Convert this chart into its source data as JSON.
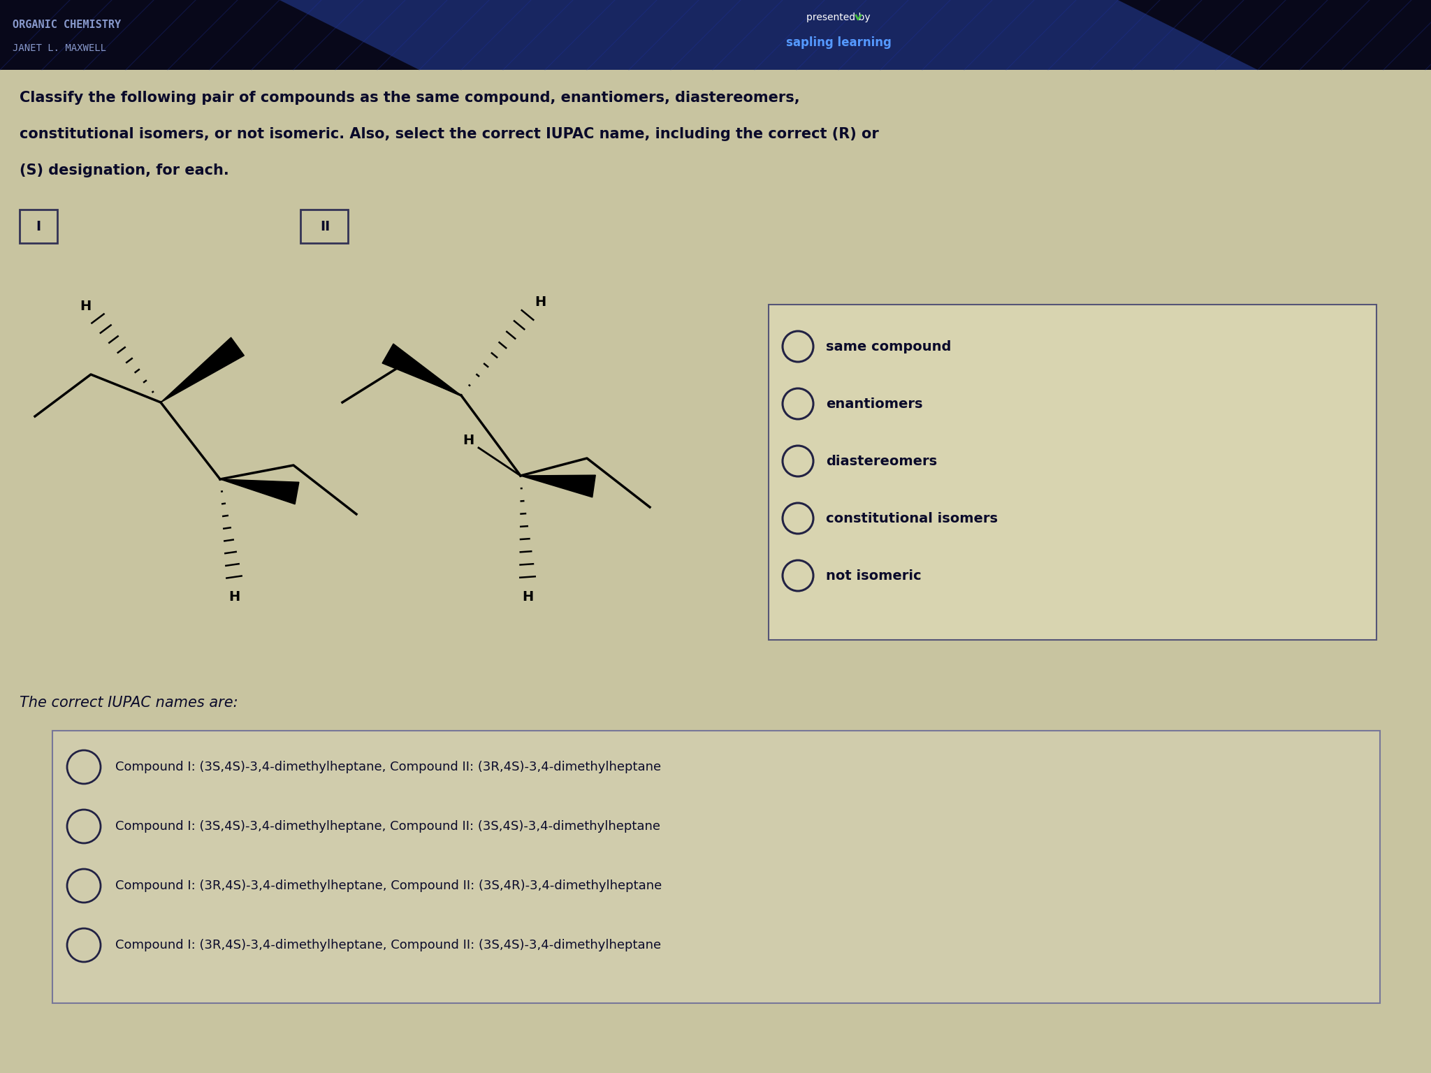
{
  "bg_color": "#c8c4a0",
  "header_bg_top": "#0a0a1a",
  "header_bg_mid": "#1a2a6a",
  "text_color": "#0a0a2a",
  "question_text_line1": "Classify the following pair of compounds as the same compound, enantiomers, diastereomers,",
  "question_text_line2": "constitutional isomers, or not isomeric. Also, select the correct IUPAC name, including the correct (R) or",
  "question_text_line3": "(S) designation, for each.",
  "label_I": "I",
  "label_II": "II",
  "radio_options": [
    "same compound",
    "enantiomers",
    "diastereomers",
    "constitutional isomers",
    "not isomeric"
  ],
  "iupac_label": "The correct IUPAC names are:",
  "iupac_options": [
    "Compound I: (3S,4S)-3,4-dimethylheptane, Compound II: (3R,4S)-3,4-dimethylheptane",
    "Compound I: (3S,4S)-3,4-dimethylheptane, Compound II: (3S,4S)-3,4-dimethylheptane",
    "Compound I: (3R,4S)-3,4-dimethylheptane, Compound II: (3S,4R)-3,4-dimethylheptane",
    "Compound I: (3R,4S)-3,4-dimethylheptane, Compound II: (3S,4S)-3,4-dimethylheptane"
  ],
  "radio_circle_color": "#222244",
  "radio_box_bg": "#d8d4b0",
  "iupac_box_bg": "#d0ccac",
  "header_left_color": "#8899cc",
  "header_right_color": "#ffffff",
  "sapling_color": "#5599ff"
}
